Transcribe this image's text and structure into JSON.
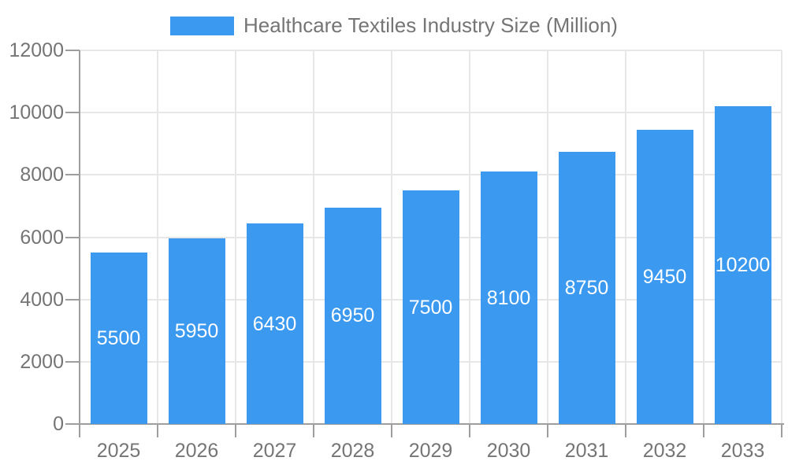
{
  "legend": {
    "label": "Healthcare Textiles Industry Size (Million)",
    "swatch_color": "#3B99F0"
  },
  "chart_data": {
    "type": "bar",
    "title": "Healthcare Textiles Industry Size (Million)",
    "categories": [
      "2025",
      "2026",
      "2027",
      "2028",
      "2029",
      "2030",
      "2031",
      "2032",
      "2033"
    ],
    "values": [
      5500,
      5950,
      6430,
      6950,
      7500,
      8100,
      8750,
      9450,
      10200
    ],
    "value_labels": [
      "5500",
      "5950",
      "6430",
      "6950",
      "7500",
      "8100",
      "8750",
      "9450",
      "10200"
    ],
    "xlabel": "",
    "ylabel": "",
    "ylim": [
      0,
      12000
    ],
    "yticks": [
      0,
      2000,
      4000,
      6000,
      8000,
      10000,
      12000
    ],
    "grid": true,
    "legend_position": "top-center",
    "colors": {
      "bar": "#3B99F0",
      "grid": "#e7e7e7",
      "axis": "#9e9e9e",
      "tick": "#9e9e9e",
      "axis_text": "#757575",
      "value_text": "#ffffff"
    }
  }
}
